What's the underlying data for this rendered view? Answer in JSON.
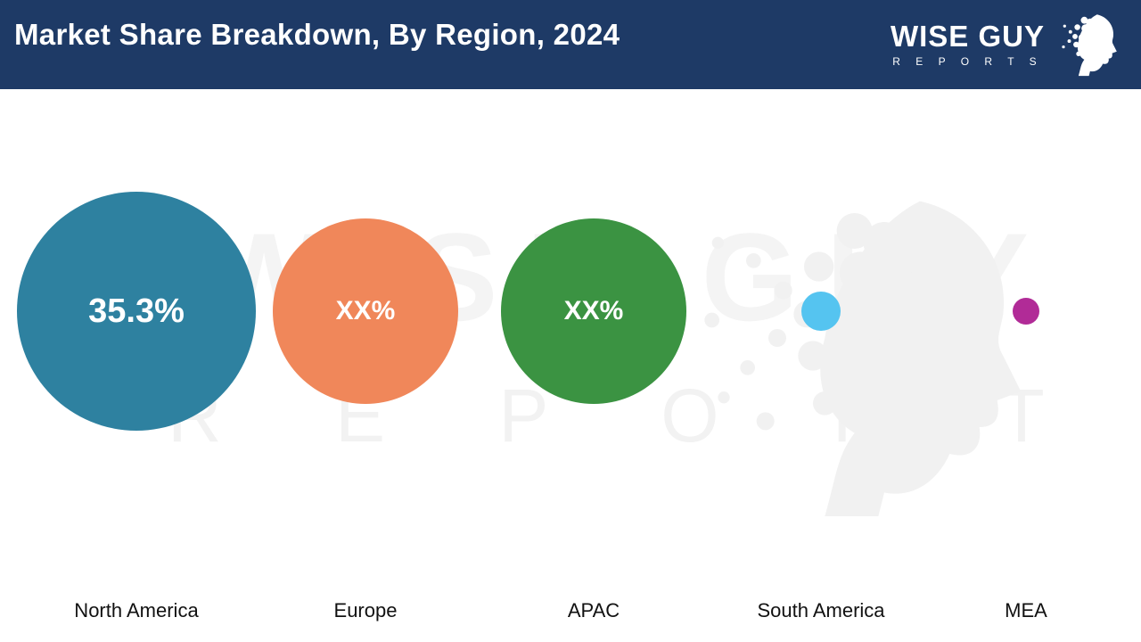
{
  "header": {
    "title": "Market Share Breakdown, By Region, 2024",
    "logo": {
      "name": "WISE GUY",
      "sub": "R E P O R T S"
    },
    "bg_color": "#1e3a66"
  },
  "watermark": {
    "line1": "WISE GUY",
    "line2": "R E P O R T S"
  },
  "chart_data": {
    "type": "bubble",
    "title": "Market Share Breakdown, By Region, 2024",
    "categories": [
      "North America",
      "Europe",
      "APAC",
      "South America",
      "MEA"
    ],
    "values": [
      "35.3%",
      "XX%",
      "XX%",
      "",
      ""
    ],
    "legend": "none",
    "bubbles": [
      {
        "label": "North America",
        "value": "35.3%",
        "color": "#2e81a0",
        "diameter": 268
      },
      {
        "label": "Europe",
        "value": "XX%",
        "color": "#f0875a",
        "diameter": 208
      },
      {
        "label": "APAC",
        "value": "XX%",
        "color": "#3b9342",
        "diameter": 208
      },
      {
        "label": "South America",
        "value": "",
        "color": "#55c4f0",
        "diameter": 44
      },
      {
        "label": "MEA",
        "value": "",
        "color": "#b12b97",
        "diameter": 30
      }
    ]
  }
}
